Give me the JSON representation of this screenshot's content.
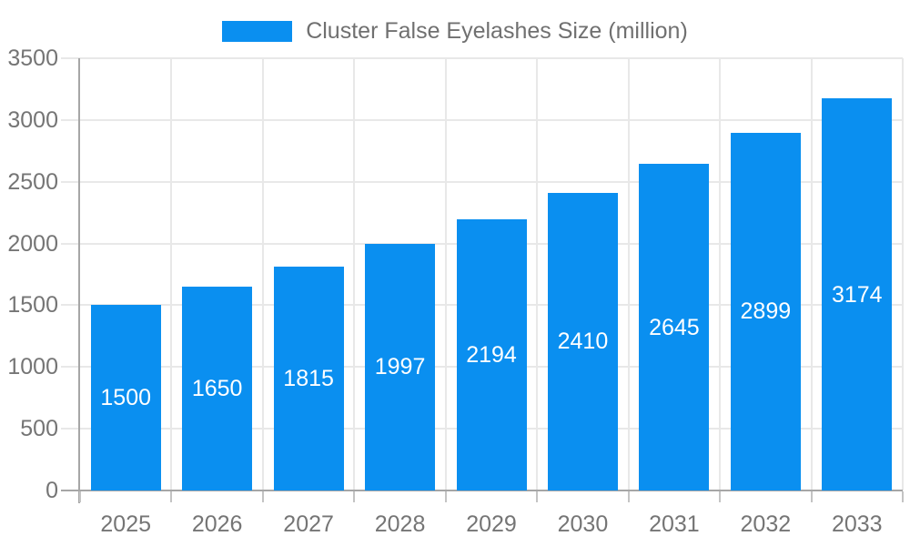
{
  "legend": {
    "label": "Cluster False Eyelashes Size (million)"
  },
  "chart_data": {
    "type": "bar",
    "title": "Cluster False Eyelashes Size (million)",
    "categories": [
      "2025",
      "2026",
      "2027",
      "2028",
      "2029",
      "2030",
      "2031",
      "2032",
      "2033"
    ],
    "values": [
      1500,
      1650,
      1815,
      1997,
      2194,
      2410,
      2645,
      2899,
      3174
    ],
    "xlabel": "",
    "ylabel": "",
    "ylim": [
      0,
      3500
    ],
    "yticks": [
      0,
      500,
      1000,
      1500,
      2000,
      2500,
      3000,
      3500
    ],
    "grid": true,
    "legend_position": "top",
    "bar_color": "#0a8ff0",
    "bar_value_label_color": "#ffffff",
    "value_labels_inside": "center"
  }
}
